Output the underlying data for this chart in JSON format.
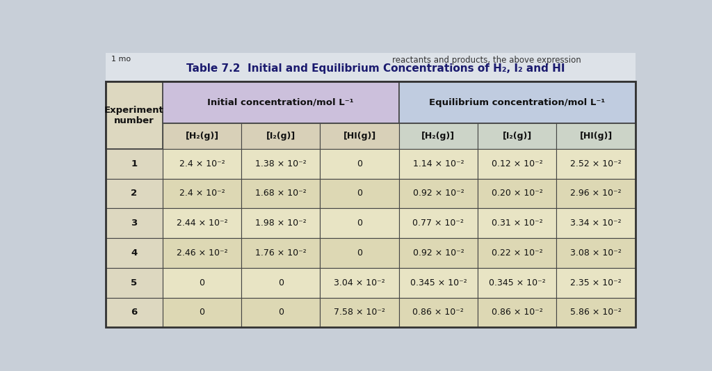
{
  "title_full": "Table 7.2  Initial and Equilibrium Concentrations of H₂, I₂ and HI",
  "top_text": "reactants and products, the above expression",
  "top_left_text": "1 mo",
  "col_header_left": "Experiment\nnumber",
  "col_header_initial": "Initial concentration/mol L⁻¹",
  "col_header_equil": "Equilibrium concentration/mol L⁻¹",
  "sub_headers": [
    "[H₂(g)]",
    "[I₂(g)]",
    "[HI(g)]",
    "[H₂(g)]",
    "[I₂(g)]",
    "[HI(g)]"
  ],
  "rows": [
    [
      "1",
      "2.4 × 10⁻²",
      "1.38 × 10⁻²",
      "0",
      "1.14 × 10⁻²",
      "0.12 × 10⁻²",
      "2.52 × 10⁻²"
    ],
    [
      "2",
      "2.4 × 10⁻²",
      "1.68 × 10⁻²",
      "0",
      "0.92 × 10⁻²",
      "0.20 × 10⁻²",
      "2.96 × 10⁻²"
    ],
    [
      "3",
      "2.44 × 10⁻²",
      "1.98 × 10⁻²",
      "0",
      "0.77 × 10⁻²",
      "0.31 × 10⁻²",
      "3.34 × 10⁻²"
    ],
    [
      "4",
      "2.46 × 10⁻²",
      "1.76 × 10⁻²",
      "0",
      "0.92 × 10⁻²",
      "0.22 × 10⁻²",
      "3.08 × 10⁻²"
    ],
    [
      "5",
      "0",
      "0",
      "3.04 × 10⁻²",
      "0.345 × 10⁻²",
      "0.345 × 10⁻²",
      "2.35 × 10⁻²"
    ],
    [
      "6",
      "0",
      "0",
      "7.58 × 10⁻²",
      "0.86 × 10⁻²",
      "0.86 × 10⁻²",
      "5.86 × 10⁻²"
    ]
  ],
  "fig_bg": "#c8cfd8",
  "page_bg": "#dde2e8",
  "header_bg_initial": "#ccc0dc",
  "header_bg_equil": "#c0cce0",
  "exp_col_bg": "#ddd8c0",
  "subheader_initial_bg": "#d8d0b8",
  "subheader_equil_bg": "#ccd4c8",
  "row_bg_1": "#e8e4c4",
  "row_bg_2": "#ddd8b4",
  "title_color": "#1a1a6e",
  "top_text_color": "#333333",
  "border_color": "#444444",
  "text_color": "#111111"
}
